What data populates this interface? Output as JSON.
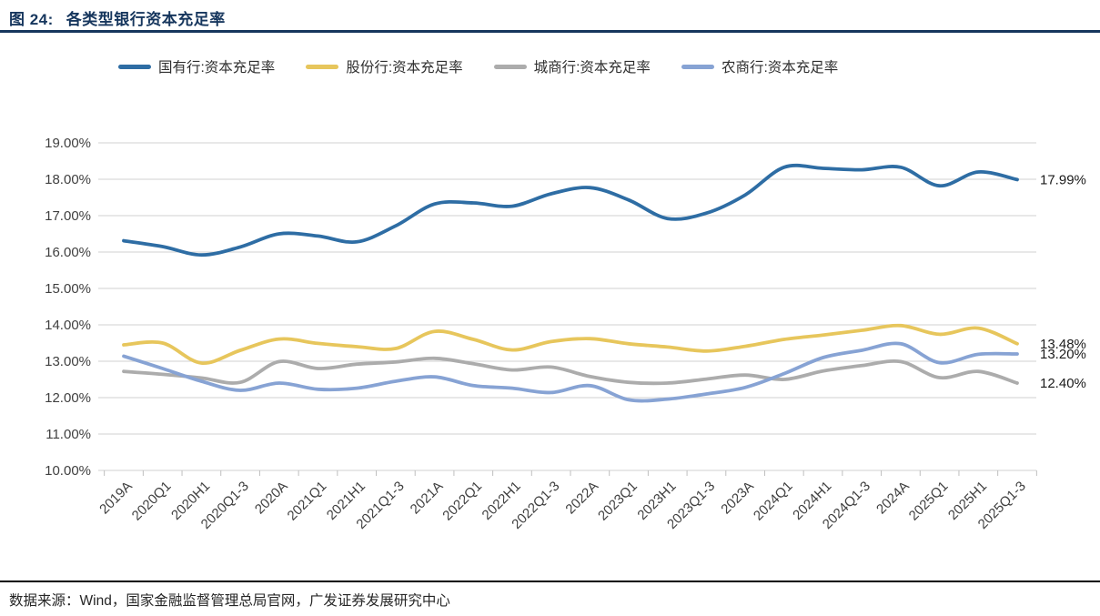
{
  "figure": {
    "title_prefix": "图 24:",
    "title": "各类型银行资本充足率"
  },
  "source": {
    "text": "数据来源：Wind，国家金融监督管理总局官网，广发证券发展研究中心"
  },
  "colors": {
    "accent_rule": "#16365D",
    "grid": "#D9D9D9",
    "axis_text": "#404040",
    "end_label_text": "#1a1a1a"
  },
  "chart_data": {
    "type": "line",
    "title": "各类型银行资本充足率",
    "categories": [
      "2019A",
      "2020Q1",
      "2020H1",
      "2020Q1-3",
      "2020A",
      "2021Q1",
      "2021H1",
      "2021Q1-3",
      "2021A",
      "2022Q1",
      "2022H1",
      "2022Q1-3",
      "2022A",
      "2023Q1",
      "2023H1",
      "2023Q1-3",
      "2023A",
      "2024Q1",
      "2024H1",
      "2024Q1-3",
      "2024A",
      "2025Q1",
      "2025H1",
      "2025Q1-3"
    ],
    "series": [
      {
        "name": "国有行:资本充足率",
        "color": "#2E6DA4",
        "end_label": "17.99%",
        "values": [
          16.31,
          16.15,
          15.92,
          16.14,
          16.5,
          16.44,
          16.28,
          16.72,
          17.32,
          17.35,
          17.26,
          17.6,
          17.77,
          17.43,
          16.92,
          17.07,
          17.57,
          18.33,
          18.3,
          18.26,
          18.33,
          17.82,
          18.2,
          17.99
        ]
      },
      {
        "name": "股份行:资本充足率",
        "color": "#E7C65C",
        "end_label": "13.48%",
        "values": [
          13.45,
          13.5,
          12.95,
          13.3,
          13.61,
          13.49,
          13.4,
          13.35,
          13.82,
          13.6,
          13.31,
          13.54,
          13.62,
          13.48,
          13.39,
          13.28,
          13.41,
          13.6,
          13.72,
          13.85,
          13.98,
          13.74,
          13.91,
          13.48
        ]
      },
      {
        "name": "城商行:资本充足率",
        "color": "#ACACAC",
        "end_label": "12.40%",
        "values": [
          12.72,
          12.64,
          12.54,
          12.42,
          12.99,
          12.8,
          12.92,
          12.98,
          13.08,
          12.93,
          12.76,
          12.84,
          12.58,
          12.42,
          12.4,
          12.51,
          12.62,
          12.5,
          12.73,
          12.88,
          12.99,
          12.55,
          12.72,
          12.4
        ]
      },
      {
        "name": "农商行:资本充足率",
        "color": "#87A3D4",
        "end_label": "13.20%",
        "values": [
          13.14,
          12.8,
          12.45,
          12.2,
          12.4,
          12.23,
          12.26,
          12.45,
          12.57,
          12.33,
          12.26,
          12.14,
          12.33,
          11.94,
          11.96,
          12.1,
          12.28,
          12.66,
          13.1,
          13.3,
          13.48,
          12.96,
          13.19,
          13.2
        ]
      }
    ],
    "ylim": [
      10,
      19
    ],
    "ytick_step": 1,
    "yticks": [
      "19.00%",
      "18.00%",
      "17.00%",
      "16.00%",
      "15.00%",
      "14.00%",
      "13.00%",
      "12.00%",
      "11.00%",
      "10.00%"
    ],
    "grid": "horizontal",
    "legend_position": "top",
    "x_label_rotation": -45,
    "draw_order": [
      2,
      1,
      3,
      0
    ]
  }
}
